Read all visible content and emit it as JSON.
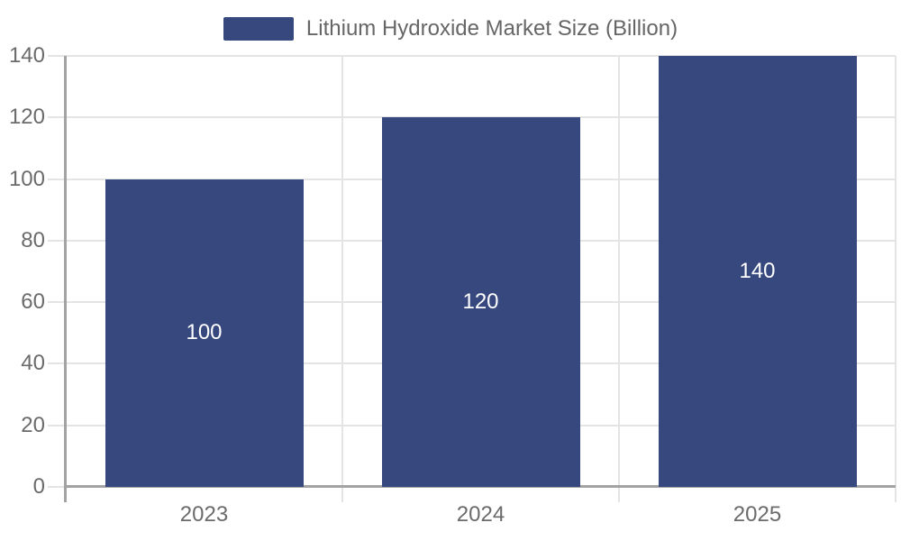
{
  "legend": {
    "series_label": "Lithium Hydroxide Market Size (Billion)"
  },
  "colors": {
    "bar": "#36487D",
    "grid_line": "#E4E4E4",
    "axis_line": "#A3A3A3",
    "tick_label": "#6B6B6B",
    "legend_text": "#666666",
    "bar_label": "#FFFFFF",
    "background": "#FFFFFF"
  },
  "chart_data": {
    "type": "bar",
    "title": "Lithium Hydroxide Market Size (Billion)",
    "categories": [
      "2023",
      "2024",
      "2025"
    ],
    "values": [
      100,
      120,
      140
    ],
    "bar_value_labels": [
      "100",
      "120",
      "140"
    ],
    "xlabel": "",
    "ylabel": "",
    "ylim": [
      0,
      140
    ],
    "yticks": [
      0,
      20,
      40,
      60,
      80,
      100,
      120,
      140
    ],
    "grid": true,
    "legend_entries": [
      "Lithium Hydroxide Market Size (Billion)"
    ],
    "legend_position": "top-center",
    "bar_label_position": "inside-center"
  }
}
